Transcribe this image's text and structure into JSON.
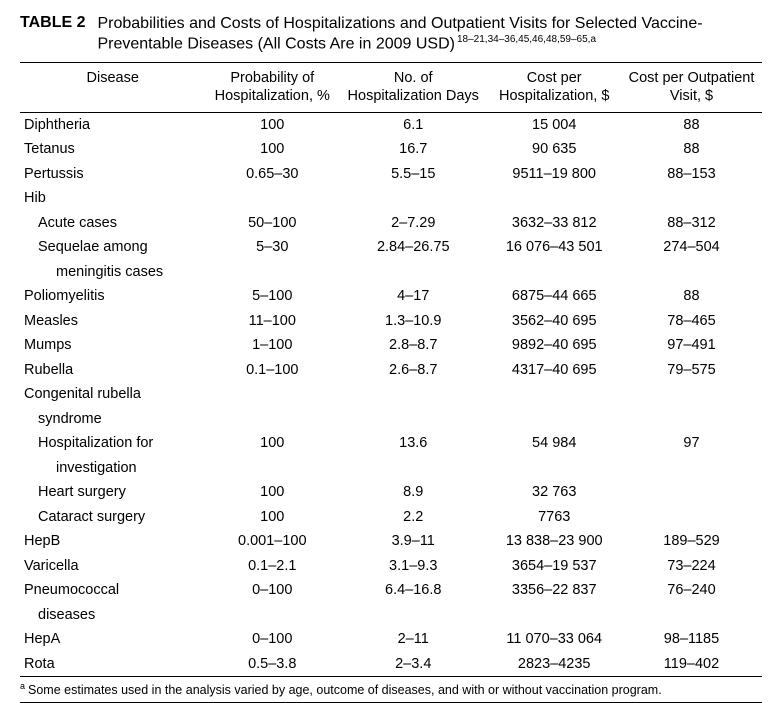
{
  "caption": {
    "number": "TABLE 2",
    "text_line1": "Probabilities and Costs of Hospitalizations and Outpatient Visits for Selected Vaccine-",
    "text_line2": "Preventable Diseases (All Costs Are in 2009 USD)",
    "superscript": "18–21,34–36,45,46,48,59–65,a"
  },
  "columns": {
    "c0": "Disease",
    "c1_l1": "Probability of",
    "c1_l2": "Hospitalization, %",
    "c2_l1": "No. of",
    "c2_l2": "Hospitalization Days",
    "c3_l1": "Cost per",
    "c3_l2": "Hospitalization, $",
    "c4_l1": "Cost per Outpatient",
    "c4_l2": "Visit, $"
  },
  "rows": [
    {
      "indent": 0,
      "disease": "Diphtheria",
      "prob": "100",
      "days": "6.1",
      "costh": "15 004",
      "costo": "88"
    },
    {
      "indent": 0,
      "disease": "Tetanus",
      "prob": "100",
      "days": "16.7",
      "costh": "90 635",
      "costo": "88"
    },
    {
      "indent": 0,
      "disease": "Pertussis",
      "prob": "0.65–30",
      "days": "5.5–15",
      "costh": "9511–19 800",
      "costo": "88–153"
    },
    {
      "indent": 0,
      "disease": "Hib",
      "prob": "",
      "days": "",
      "costh": "",
      "costo": ""
    },
    {
      "indent": 1,
      "disease": "Acute cases",
      "prob": "50–100",
      "days": "2–7.29",
      "costh": "3632–33 812",
      "costo": "88–312"
    },
    {
      "indent": 1,
      "disease": "Sequelae among",
      "prob": "5–30",
      "days": "2.84–26.75",
      "costh": "16 076–43 501",
      "costo": "274–504"
    },
    {
      "indent": 2,
      "disease": "meningitis cases",
      "prob": "",
      "days": "",
      "costh": "",
      "costo": ""
    },
    {
      "indent": 0,
      "disease": "Poliomyelitis",
      "prob": "5–100",
      "days": "4–17",
      "costh": "6875–44 665",
      "costo": "88"
    },
    {
      "indent": 0,
      "disease": "Measles",
      "prob": "11–100",
      "days": "1.3–10.9",
      "costh": "3562–40 695",
      "costo": "78–465"
    },
    {
      "indent": 0,
      "disease": "Mumps",
      "prob": "1–100",
      "days": "2.8–8.7",
      "costh": "9892–40 695",
      "costo": "97–491"
    },
    {
      "indent": 0,
      "disease": "Rubella",
      "prob": "0.1–100",
      "days": "2.6–8.7",
      "costh": "4317–40 695",
      "costo": "79–575"
    },
    {
      "indent": 0,
      "disease": "Congenital rubella",
      "prob": "",
      "days": "",
      "costh": "",
      "costo": ""
    },
    {
      "indent": 1,
      "disease": "syndrome",
      "prob": "",
      "days": "",
      "costh": "",
      "costo": ""
    },
    {
      "indent": 1,
      "disease": "Hospitalization for",
      "prob": "100",
      "days": "13.6",
      "costh": "54 984",
      "costo": "97"
    },
    {
      "indent": 2,
      "disease": "investigation",
      "prob": "",
      "days": "",
      "costh": "",
      "costo": ""
    },
    {
      "indent": 1,
      "disease": "Heart surgery",
      "prob": "100",
      "days": "8.9",
      "costh": "32 763",
      "costo": ""
    },
    {
      "indent": 1,
      "disease": "Cataract surgery",
      "prob": "100",
      "days": "2.2",
      "costh": "7763",
      "costo": ""
    },
    {
      "indent": 0,
      "disease": "HepB",
      "prob": "0.001–100",
      "days": "3.9–11",
      "costh": "13 838–23 900",
      "costo": "189–529"
    },
    {
      "indent": 0,
      "disease": "Varicella",
      "prob": "0.1–2.1",
      "days": "3.1–9.3",
      "costh": "3654–19 537",
      "costo": "73–224"
    },
    {
      "indent": 0,
      "disease": "Pneumococcal",
      "prob": "0–100",
      "days": "6.4–16.8",
      "costh": "3356–22 837",
      "costo": "76–240"
    },
    {
      "indent": 1,
      "disease": "diseases",
      "prob": "",
      "days": "",
      "costh": "",
      "costo": ""
    },
    {
      "indent": 0,
      "disease": "HepA",
      "prob": "0–100",
      "days": "2–11",
      "costh": "11 070–33 064",
      "costo": "98–1185"
    },
    {
      "indent": 0,
      "disease": "Rota",
      "prob": "0.5–3.8",
      "days": "2–3.4",
      "costh": "2823–4235",
      "costo": "119–402"
    }
  ],
  "footnote": {
    "marker": "a",
    "text": "Some estimates used in the analysis varied by age, outcome of diseases, and with or without vaccination program."
  }
}
